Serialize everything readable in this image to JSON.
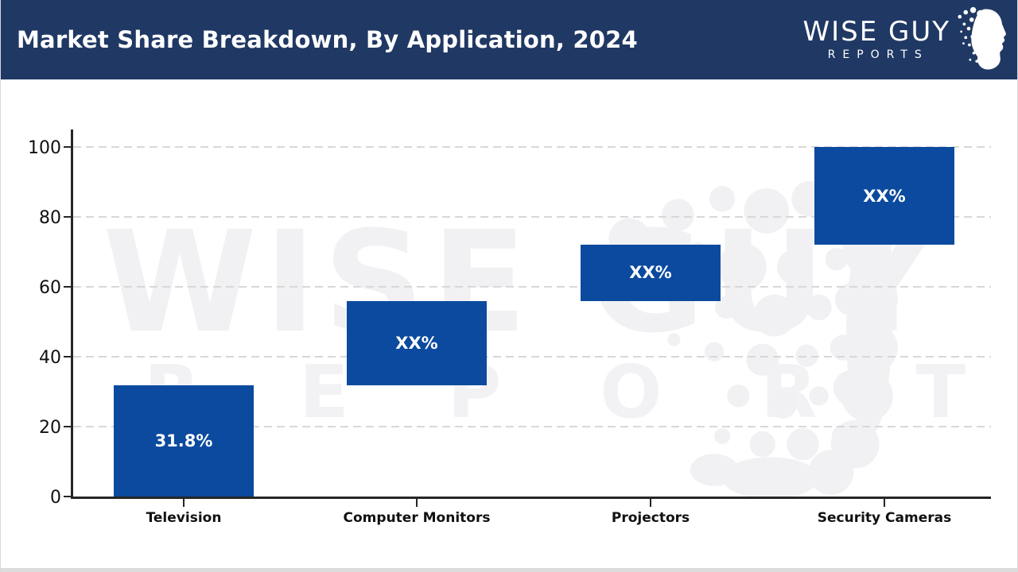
{
  "header": {
    "title": "Market Share Breakdown, By Application, 2024",
    "bg_color": "#203864",
    "logo": {
      "line1": "WISE GUY",
      "line2": "REPORTS"
    }
  },
  "watermark": {
    "line1": "WISE GUY",
    "line2": "REPORTS"
  },
  "chart_data": {
    "type": "bar",
    "subtype": "waterfall",
    "title": "Market Share Breakdown, By Application, 2024",
    "categories": [
      "Television",
      "Computer Monitors",
      "Projectors",
      "Security Cameras"
    ],
    "bars": [
      {
        "category": "Television",
        "start": 0,
        "end": 31.8,
        "label": "31.8%"
      },
      {
        "category": "Computer Monitors",
        "start": 31.8,
        "end": 56,
        "label": "XX%"
      },
      {
        "category": "Projectors",
        "start": 56,
        "end": 72,
        "label": "XX%"
      },
      {
        "category": "Security Cameras",
        "start": 72,
        "end": 100,
        "label": "XX%"
      }
    ],
    "yticks": [
      0,
      20,
      40,
      60,
      80,
      100
    ],
    "ylim": [
      0,
      105
    ],
    "xlabel": "",
    "ylabel": "",
    "bar_color": "#0b4a9e",
    "label_color": "#ffffff",
    "grid": "horizontal dashed",
    "gridline_color": "#d8d8d8",
    "legend": "none"
  }
}
